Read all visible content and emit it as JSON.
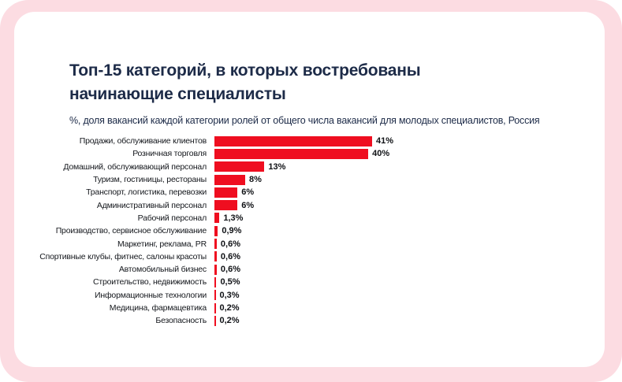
{
  "colors": {
    "frame_pink": "#fcdce2",
    "card_background": "#ffffff",
    "title_navy": "#1d2b48",
    "bar_red": "#ef0e20"
  },
  "header": {
    "title_line1": "Топ-15 категорий, в которых востребованы",
    "title_line2": "начинающие специалисты",
    "subtitle": "%, доля вакансий каждой категории ролей от общего числа вакансий для молодых специалистов, Россия"
  },
  "chart_data": {
    "type": "bar",
    "orientation": "horizontal",
    "title": "Топ-15 категорий, в которых востребованы начинающие специалисты",
    "subtitle": "%, доля вакансий каждой категории ролей от общего числа вакансий для молодых специалистов, Россия",
    "xlabel": "",
    "ylabel": "",
    "xlim": [
      0,
      41
    ],
    "grid": false,
    "legend": false,
    "bar_color": "#ef0e20",
    "categories": [
      "Продажи, обслуживание клиентов",
      "Розничная торговля",
      "Домашний, обслуживающий персонал",
      "Туризм, гостиницы, рестораны",
      "Транспорт, логистика, перевозки",
      "Административный персонал",
      "Рабочий персонал",
      "Производство, сервисное обслуживание",
      "Маркетинг, реклама, PR",
      "Спортивные клубы, фитнес, салоны красоты",
      "Автомобильный бизнес",
      "Строительство, недвижимость",
      "Информационные технологии",
      "Медицина, фармацевтика",
      "Безопасность"
    ],
    "values": [
      41,
      40,
      13,
      8,
      6,
      6,
      1.3,
      0.9,
      0.6,
      0.6,
      0.6,
      0.5,
      0.3,
      0.2,
      0.2
    ],
    "value_labels": [
      "41%",
      "40%",
      "13%",
      "8%",
      "6%",
      "6%",
      "1,3%",
      "0,9%",
      "0,6%",
      "0,6%",
      "0,6%",
      "0,5%",
      "0,3%",
      "0,2%",
      "0,2%"
    ]
  }
}
